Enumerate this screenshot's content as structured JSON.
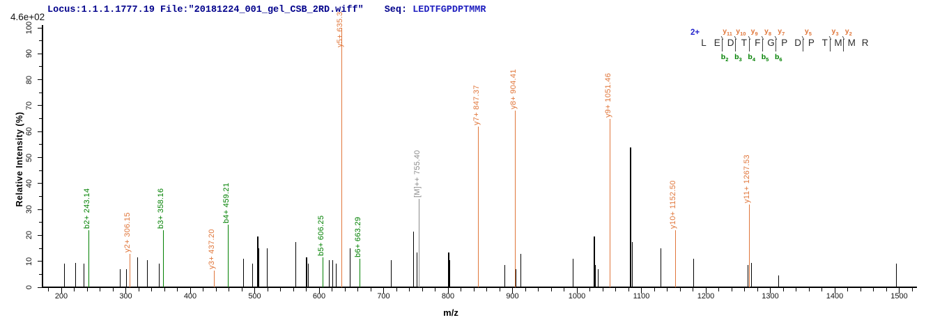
{
  "header": {
    "locus_file": "Locus:1.1.1.1777.19 File:\"20181224_001_gel_CSB_2RD.wiff\"",
    "seq_label": "Seq:",
    "seq_value": "LEDTFGPDPTMMR"
  },
  "colors": {
    "b_ion_green": "#008000",
    "y_ion_orange": "#E0763A",
    "precursor_gray": "#8a8a8a",
    "peak_black": "#000000",
    "header_navy": "#00008B",
    "seq_blue": "#1f1fbf",
    "charge_blue": "#2222cc"
  },
  "chart_data": {
    "type": "bar",
    "variant": "ms2-fragment-spectrum",
    "title": "",
    "xlabel": "m/z",
    "ylabel": "Relative Intensity (%)",
    "y_max_label": "4.6e+02",
    "xlim": [
      170,
      1530
    ],
    "ylim": [
      0,
      100
    ],
    "grid": false,
    "x_major_ticks": [
      200,
      300,
      400,
      500,
      600,
      700,
      800,
      900,
      1000,
      1100,
      1200,
      1300,
      1400,
      1500
    ],
    "x_minor_step": 20,
    "y_major_ticks": [
      0,
      10,
      20,
      30,
      40,
      50,
      60,
      70,
      80,
      90,
      100
    ],
    "y_minor_step": 5,
    "labeled_peaks": [
      {
        "label": "b2+ 243.14",
        "mz": 243.14,
        "intensity": 22,
        "series": "b"
      },
      {
        "label": "y2+ 306.15",
        "mz": 306.15,
        "intensity": 13,
        "series": "y"
      },
      {
        "label": "b3+ 358.16",
        "mz": 358.16,
        "intensity": 22,
        "series": "b"
      },
      {
        "label": "y3+ 437.20",
        "mz": 437.2,
        "intensity": 6.5,
        "series": "y"
      },
      {
        "label": "b4+ 459.21",
        "mz": 459.21,
        "intensity": 24,
        "series": "b"
      },
      {
        "label": "b5+ 606.25",
        "mz": 606.25,
        "intensity": 11.5,
        "series": "b"
      },
      {
        "label": "y5+ 635.3",
        "mz": 635.31,
        "intensity": 100,
        "series": "y"
      },
      {
        "label": "b6+ 663.29",
        "mz": 663.29,
        "intensity": 11,
        "series": "b"
      },
      {
        "label": "[M]++ 755.40",
        "mz": 755.4,
        "intensity": 34,
        "series": "M"
      },
      {
        "label": "y7+ 847.37",
        "mz": 847.37,
        "intensity": 62,
        "series": "y"
      },
      {
        "label": "y8+ 904.41",
        "mz": 904.41,
        "intensity": 68,
        "series": "y"
      },
      {
        "label": "y9+ 1051.46",
        "mz": 1051.46,
        "intensity": 65,
        "series": "y"
      },
      {
        "label": "y10+ 1152.50",
        "mz": 1152.5,
        "intensity": 22,
        "series": "y"
      },
      {
        "label": "y11+ 1267.53",
        "mz": 1267.53,
        "intensity": 32,
        "series": "y"
      }
    ],
    "unlabeled_peaks": [
      [
        205,
        9
      ],
      [
        222,
        9.5
      ],
      [
        235,
        9
      ],
      [
        291,
        7
      ],
      [
        301,
        7
      ],
      [
        318,
        11.5
      ],
      [
        334,
        10.5
      ],
      [
        352,
        9
      ],
      [
        483,
        11
      ],
      [
        497,
        9
      ],
      [
        504,
        19.5,
        2
      ],
      [
        507,
        15
      ],
      [
        519,
        15
      ],
      [
        564,
        17.5
      ],
      [
        580,
        11.5,
        2
      ],
      [
        583,
        9
      ],
      [
        616,
        10.5
      ],
      [
        621,
        10.5
      ],
      [
        627,
        9
      ],
      [
        648,
        15
      ],
      [
        712,
        10.5
      ],
      [
        746,
        21.5
      ],
      [
        752,
        13.5
      ],
      [
        800,
        13.5,
        2
      ],
      [
        803,
        10.5
      ],
      [
        888,
        8.5
      ],
      [
        905,
        7
      ],
      [
        913,
        13
      ],
      [
        994,
        11
      ],
      [
        1026,
        19.5,
        2
      ],
      [
        1029,
        8.5
      ],
      [
        1033,
        7
      ],
      [
        1083,
        54,
        2
      ],
      [
        1086,
        17.5
      ],
      [
        1130,
        15
      ],
      [
        1181,
        11
      ],
      [
        1265,
        8.5
      ],
      [
        1271,
        9.5
      ],
      [
        1313,
        4.5
      ],
      [
        1496,
        9
      ]
    ]
  },
  "annotation": {
    "charge": "2+",
    "residues": [
      "L",
      "E",
      "D",
      "T",
      "F",
      "G",
      "P",
      "D",
      "P",
      "T",
      "M",
      "M",
      "R"
    ],
    "y_ions": [
      {
        "name": "y",
        "num": 11,
        "site": 2
      },
      {
        "name": "y",
        "num": 10,
        "site": 3
      },
      {
        "name": "y",
        "num": 9,
        "site": 4
      },
      {
        "name": "y",
        "num": 8,
        "site": 5
      },
      {
        "name": "y",
        "num": 7,
        "site": 6
      },
      {
        "name": "y",
        "num": 5,
        "site": 8
      },
      {
        "name": "y",
        "num": 3,
        "site": 10
      },
      {
        "name": "y",
        "num": 2,
        "site": 11
      }
    ],
    "b_ions": [
      {
        "name": "b",
        "num": 2,
        "site": 2
      },
      {
        "name": "b",
        "num": 3,
        "site": 3
      },
      {
        "name": "b",
        "num": 4,
        "site": 4
      },
      {
        "name": "b",
        "num": 5,
        "site": 5
      },
      {
        "name": "b",
        "num": 6,
        "site": 6
      }
    ]
  }
}
